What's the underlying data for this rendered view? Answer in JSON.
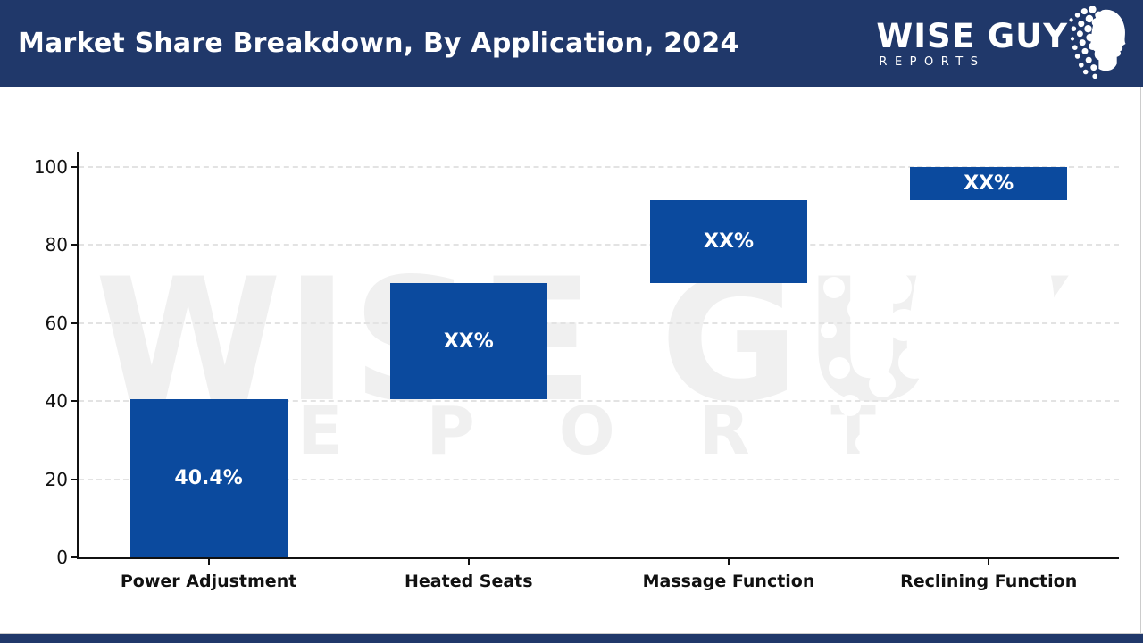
{
  "header": {
    "title": "Market Share Breakdown, By Application, 2024"
  },
  "brand": {
    "name_top": "WISE GUY",
    "name_bottom": "REPORTS"
  },
  "watermark": {
    "line1": "WISE GUY",
    "line2": "REPORTS"
  },
  "colors": {
    "header_bg": "#20386a",
    "bar": "#0b4a9e",
    "grid": "#e3e3e3",
    "axis": "#111111",
    "bar_label": "#ffffff",
    "watermark": "#f0f0f0",
    "page_bg": "#ffffff",
    "border": "#cccccc"
  },
  "chart_data": {
    "type": "bar",
    "subtype": "waterfall-floating-segments",
    "title": "Market Share Breakdown, By Application, 2024",
    "categories": [
      "Power Adjustment",
      "Heated Seats",
      "Massage Function",
      "Reclining Function"
    ],
    "segments": [
      {
        "start": 0,
        "end": 40.4
      },
      {
        "start": 40.4,
        "end": 70.3
      },
      {
        "start": 70.3,
        "end": 91.5
      },
      {
        "start": 91.5,
        "end": 100
      }
    ],
    "bar_labels": [
      "40.4%",
      "XX%",
      "XX%",
      "XX%"
    ],
    "yticks": [
      0,
      20,
      40,
      60,
      80,
      100
    ],
    "ylim": [
      0,
      105
    ],
    "grid": "horizontal-dashed",
    "legend": "none",
    "xlabel": "",
    "ylabel": ""
  }
}
